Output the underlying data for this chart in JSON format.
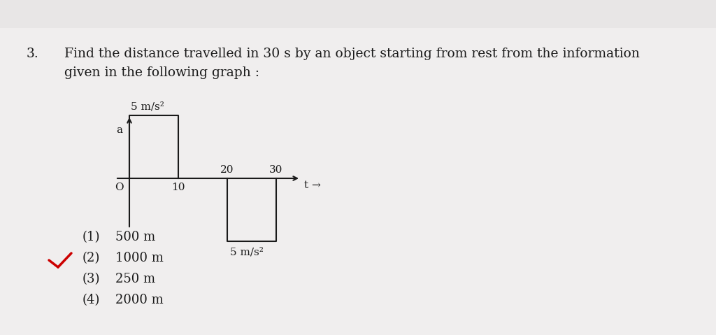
{
  "bg_color": "#f0eeee",
  "content_bg": "#ffffff",
  "text_color": "#1a1a1a",
  "red_color": "#cc0000",
  "question_number": "3.",
  "question_line1": "Find the distance travelled in 30 s by an object starting from rest from the information",
  "question_line2": "given in the following graph :",
  "y_axis_label": "a",
  "x_axis_label": "t",
  "pos_block_label": "5 m/s²",
  "neg_block_label": "5 m/s²",
  "tick_O": "O",
  "tick_10": "10",
  "tick_20": "20",
  "tick_30": "30",
  "options": [
    "(1)",
    "(2)",
    "(3)",
    "(4)"
  ],
  "option_values": [
    "500 m",
    "1000 m",
    "250 m",
    "2000 m"
  ],
  "font_size_q": 13.5,
  "font_size_graph": 11,
  "font_size_opt": 13
}
